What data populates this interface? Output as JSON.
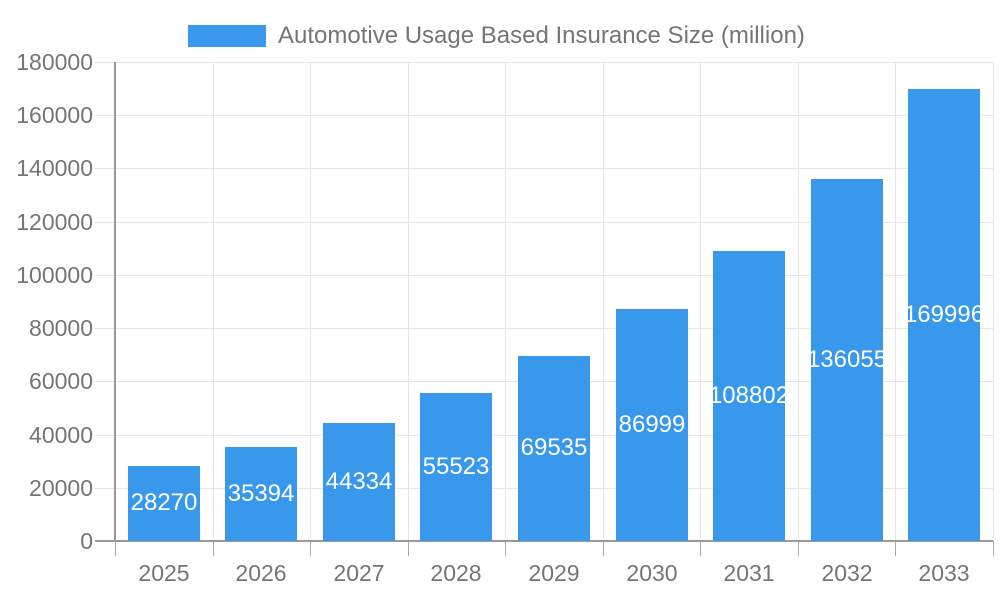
{
  "legend": {
    "label": "Automotive Usage Based Insurance Size (million)"
  },
  "chart_data": {
    "type": "bar",
    "title": "Automotive Usage Based Insurance Size (million)",
    "categories": [
      "2025",
      "2026",
      "2027",
      "2028",
      "2029",
      "2030",
      "2031",
      "2032",
      "2033"
    ],
    "values": [
      28270,
      35394,
      44334,
      55523,
      69535,
      86999,
      108802,
      136055,
      169996
    ],
    "xlabel": "",
    "ylabel": "",
    "ylim": [
      0,
      180000
    ],
    "ytick_interval": 20000,
    "yticks": [
      "0",
      "20000",
      "40000",
      "60000",
      "80000",
      "100000",
      "120000",
      "140000",
      "160000",
      "180000"
    ],
    "grid": true,
    "legend_position": "top",
    "value_labels": "inside-center",
    "colors": {
      "bar": "#3899EC",
      "value_label": "#ffffff",
      "axis_text": "#757575",
      "grid_line": "#e6e6e6",
      "axis_line": "#999999",
      "tick_line": "#aaaaaa"
    }
  }
}
